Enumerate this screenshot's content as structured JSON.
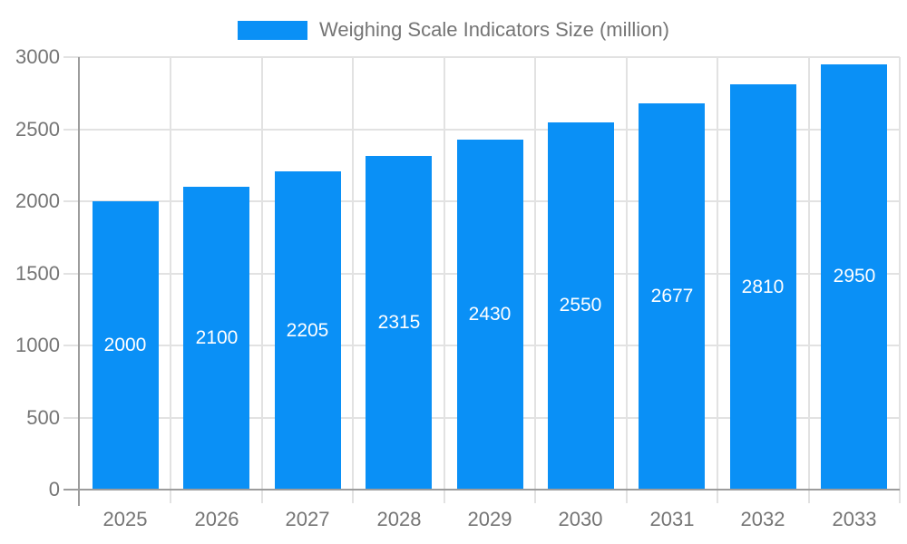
{
  "legend": {
    "label": "Weighing Scale Indicators Size (million)"
  },
  "chart_data": {
    "type": "bar",
    "title": "",
    "xlabel": "",
    "ylabel": "",
    "categories": [
      "2025",
      "2026",
      "2027",
      "2028",
      "2029",
      "2030",
      "2031",
      "2032",
      "2033"
    ],
    "series": [
      {
        "name": "Weighing Scale Indicators Size (million)",
        "values": [
          2000,
          2100,
          2205,
          2315,
          2430,
          2550,
          2677,
          2810,
          2950
        ]
      }
    ],
    "data_labels": [
      "2000",
      "2100",
      "2205",
      "2315",
      "2430",
      "2550",
      "2677",
      "2810",
      "2950"
    ],
    "ylim": [
      0,
      3000
    ],
    "y_ticks": [
      0,
      500,
      1000,
      1500,
      2000,
      2500,
      3000
    ],
    "grid": true,
    "legend_position": "top-center"
  },
  "colors": {
    "bar": "#0a90f6",
    "grid": "#e2e2e2",
    "axis": "#9c9c9c",
    "text": "#757575",
    "bar_label": "#ffffff",
    "background": "#ffffff"
  }
}
